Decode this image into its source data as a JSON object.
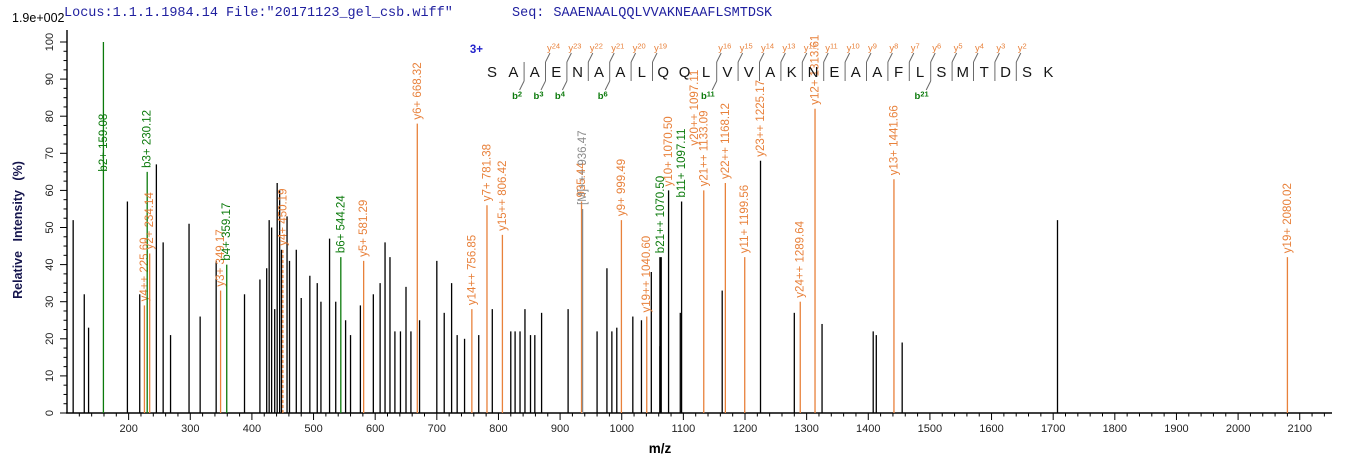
{
  "header": {
    "locus_text": "Locus:1.1.1.1984.14 File:\"20171123_gel_csb.wiff\"",
    "seq_label": "Seq:",
    "seq_value": "SAAENAALQQLVVAKNEAAFLSMTDSK",
    "intensity_max": "1.9e+002"
  },
  "chart_data": {
    "type": "bar",
    "variant": "centroided MS/MS peptide fragmentation spectrum",
    "title": "",
    "xlabel": "m/z",
    "ylabel": "Relative Intensity (%)",
    "x_range": [
      100,
      2141
    ],
    "y_range": [
      0,
      100
    ],
    "x_major_tick_step": 100,
    "x_minor_tick_step": 20,
    "x_first_labeled_tick": 200,
    "x_last_labeled_tick": 2100,
    "y_major_tick_step": 10,
    "y_minor_tick_step": 2.5,
    "grid": false,
    "legend": false,
    "colors": {
      "y_ion": "#E8813B",
      "b_ion": "#0B7A0B",
      "precursor": "#8a8a8a",
      "peak_default": "#000000",
      "header_text": "#1f1f9f",
      "charge_blue": "#2323cc"
    },
    "sequence": {
      "charge_label": "3+",
      "residues": "SAAENAALQQLVVAKNEAAFLSMTDSK",
      "y_ions": [
        {
          "gap": 3,
          "name": "y",
          "num": "24"
        },
        {
          "gap": 4,
          "name": "y",
          "num": "23"
        },
        {
          "gap": 5,
          "name": "y",
          "num": "22"
        },
        {
          "gap": 6,
          "name": "y",
          "num": "21"
        },
        {
          "gap": 7,
          "name": "y",
          "num": "20"
        },
        {
          "gap": 8,
          "name": "y",
          "num": "19"
        },
        {
          "gap": 11,
          "name": "y",
          "num": "16"
        },
        {
          "gap": 12,
          "name": "y",
          "num": "15"
        },
        {
          "gap": 13,
          "name": "y",
          "num": "14"
        },
        {
          "gap": 14,
          "name": "y",
          "num": "13"
        },
        {
          "gap": 15,
          "name": "y",
          "num": "12"
        },
        {
          "gap": 16,
          "name": "y",
          "num": "11"
        },
        {
          "gap": 17,
          "name": "y",
          "num": "10"
        },
        {
          "gap": 18,
          "name": "y",
          "num": "9"
        },
        {
          "gap": 19,
          "name": "y",
          "num": "8"
        },
        {
          "gap": 20,
          "name": "y",
          "num": "7"
        },
        {
          "gap": 21,
          "name": "y",
          "num": "6"
        },
        {
          "gap": 22,
          "name": "y",
          "num": "5"
        },
        {
          "gap": 23,
          "name": "y",
          "num": "4"
        },
        {
          "gap": 24,
          "name": "y",
          "num": "3"
        },
        {
          "gap": 25,
          "name": "y",
          "num": "2"
        }
      ],
      "b_ions": [
        {
          "gap": 2,
          "name": "b",
          "num": "2"
        },
        {
          "gap": 3,
          "name": "b",
          "num": "3"
        },
        {
          "gap": 4,
          "name": "b",
          "num": "4"
        },
        {
          "gap": 6,
          "name": "b",
          "num": "6"
        },
        {
          "gap": 11,
          "name": "b",
          "num": "11"
        },
        {
          "gap": 21,
          "name": "b",
          "num": "21"
        }
      ]
    },
    "labeled_peaks": [
      {
        "mz": 159.08,
        "intensity": 100,
        "ion": "b",
        "label": "b2+ 159.08",
        "label_bottom": 64
      },
      {
        "mz": 225.6,
        "intensity": 29,
        "ion": "y",
        "label": "y4++ 225.60"
      },
      {
        "mz": 230.12,
        "intensity": 65,
        "ion": "b",
        "label": "b3+ 230.12"
      },
      {
        "mz": 234.14,
        "intensity": 43,
        "ion": "y",
        "label": "y2+ 234.14"
      },
      {
        "mz": 349.17,
        "intensity": 33,
        "ion": "y",
        "label": "y3+ 349.17"
      },
      {
        "mz": 359.17,
        "intensity": 40,
        "ion": "b",
        "label": "b4+ 359.17"
      },
      {
        "mz": 450.19,
        "intensity": 44,
        "ion": "y",
        "label": "y4+ 450.19",
        "dashed": true
      },
      {
        "mz": 544.24,
        "intensity": 42,
        "ion": "b",
        "label": "b6+ 544.24"
      },
      {
        "mz": 581.29,
        "intensity": 41,
        "ion": "y",
        "label": "y5+ 581.29"
      },
      {
        "mz": 668.32,
        "intensity": 78,
        "ion": "y",
        "label": "y6+ 668.32"
      },
      {
        "mz": 756.85,
        "intensity": 28,
        "ion": "y",
        "label": "y14++ 756.85"
      },
      {
        "mz": 781.38,
        "intensity": 56,
        "ion": "y",
        "label": "y7+ 781.38"
      },
      {
        "mz": 806.42,
        "intensity": 48,
        "ion": "y",
        "label": "y15++ 806.42"
      },
      {
        "mz": 934.8,
        "intensity": 57,
        "ion": "y",
        "label": "935.44"
      },
      {
        "mz": 936.47,
        "intensity": 55,
        "ion": "M",
        "label": "[M]+++ 936.47"
      },
      {
        "mz": 999.49,
        "intensity": 52,
        "ion": "y",
        "label": "y9+ 999.49"
      },
      {
        "mz": 1040.6,
        "intensity": 26,
        "ion": "y",
        "label": "y19++ 1040.60"
      },
      {
        "mz": 1063.0,
        "intensity": 42,
        "ion": "b",
        "label": "b21++ 1070.50",
        "line": "black",
        "width": 2.6
      },
      {
        "mz": 1076.0,
        "intensity": 60,
        "ion": "y",
        "label": "y10+ 1070.50",
        "line": "black"
      },
      {
        "mz": 1097.11,
        "intensity": 57,
        "ion": "b",
        "label": "b11+ 1097.11",
        "line": "black"
      },
      {
        "mz": 1118.0,
        "intensity": 0,
        "ion": "y",
        "label": "y20++ 1097.11",
        "label_only": true,
        "label_bottom": 71
      },
      {
        "mz": 1133.09,
        "intensity": 60,
        "ion": "y",
        "label": "y21++ 1133.09"
      },
      {
        "mz": 1168.12,
        "intensity": 62,
        "ion": "y",
        "label": "y22++ 1168.12"
      },
      {
        "mz": 1199.56,
        "intensity": 42,
        "ion": "y",
        "label": "y11+ 1199.56"
      },
      {
        "mz": 1225.17,
        "intensity": 68,
        "ion": "y",
        "label": "y23++ 1225.17",
        "line": "black"
      },
      {
        "mz": 1289.64,
        "intensity": 30,
        "ion": "y",
        "label": "y24++ 1289.64"
      },
      {
        "mz": 1313.61,
        "intensity": 82,
        "ion": "y",
        "label": "y12+ 1313.61"
      },
      {
        "mz": 1441.66,
        "intensity": 63,
        "ion": "y",
        "label": "y13+ 1441.66"
      },
      {
        "mz": 2080.02,
        "intensity": 42,
        "ion": "y",
        "label": "y19+ 2080.02"
      }
    ],
    "unlabeled_peaks": [
      [
        110,
        52
      ],
      [
        128,
        32
      ],
      [
        135,
        23
      ],
      [
        198,
        57
      ],
      [
        218,
        32
      ],
      [
        245,
        67
      ],
      [
        256,
        46
      ],
      [
        268,
        21
      ],
      [
        298,
        51
      ],
      [
        316,
        26
      ],
      [
        342,
        41
      ],
      [
        388,
        32
      ],
      [
        413,
        36
      ],
      [
        424,
        39
      ],
      [
        428,
        52
      ],
      [
        432,
        50
      ],
      [
        437,
        28
      ],
      [
        441,
        62
      ],
      [
        445,
        60
      ],
      [
        448,
        44
      ],
      [
        457,
        53
      ],
      [
        461,
        41
      ],
      [
        472,
        44
      ],
      [
        480,
        31
      ],
      [
        494,
        37
      ],
      [
        506,
        35
      ],
      [
        512,
        30
      ],
      [
        526,
        47
      ],
      [
        536,
        30
      ],
      [
        552,
        25
      ],
      [
        560,
        21
      ],
      [
        576,
        29
      ],
      [
        597,
        32
      ],
      [
        608,
        35
      ],
      [
        616,
        46
      ],
      [
        624,
        42
      ],
      [
        632,
        22
      ],
      [
        641,
        22
      ],
      [
        650,
        34
      ],
      [
        658,
        22
      ],
      [
        672,
        25
      ],
      [
        700,
        41
      ],
      [
        712,
        27
      ],
      [
        724,
        35
      ],
      [
        733,
        21
      ],
      [
        745,
        20
      ],
      [
        768,
        21
      ],
      [
        790,
        28
      ],
      [
        820,
        22
      ],
      [
        827,
        22
      ],
      [
        835,
        22
      ],
      [
        843,
        28
      ],
      [
        852,
        21
      ],
      [
        859,
        21
      ],
      [
        870,
        27
      ],
      [
        913,
        28
      ],
      [
        960,
        22
      ],
      [
        976,
        39
      ],
      [
        984,
        22
      ],
      [
        992,
        23
      ],
      [
        1018,
        26
      ],
      [
        1032,
        25
      ],
      [
        1048,
        38
      ],
      [
        1062,
        18
      ],
      [
        1095,
        27
      ],
      [
        1163,
        33
      ],
      [
        1280,
        27
      ],
      [
        1325,
        24
      ],
      [
        1408,
        22
      ],
      [
        1413,
        21
      ],
      [
        1455,
        19
      ],
      [
        1707,
        52
      ]
    ]
  }
}
